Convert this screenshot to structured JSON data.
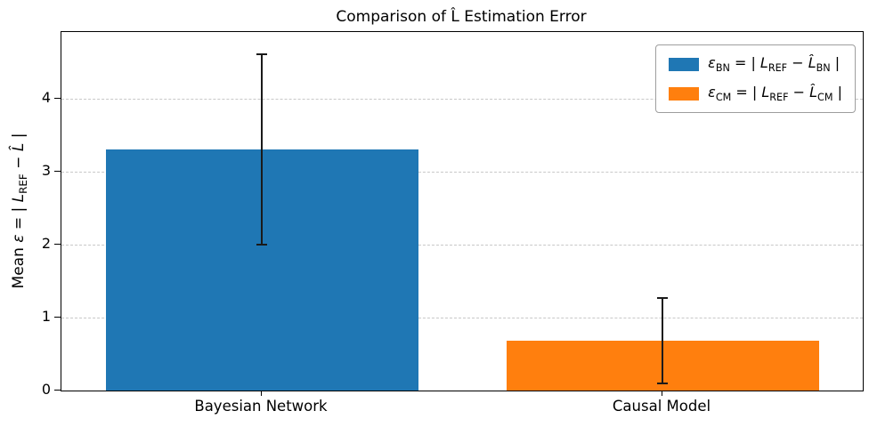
{
  "chart_data": {
    "type": "bar",
    "title": "Comparison of L̂ Estimation Error",
    "ylabel_segments": [
      {
        "t": "Mean "
      },
      {
        "t": "ε",
        "i": true
      },
      {
        "t": " = | "
      },
      {
        "t": "L",
        "i": true
      },
      {
        "t": "REF",
        "sub": true
      },
      {
        "t": " − "
      },
      {
        "t": "L̂",
        "i": true
      },
      {
        "t": " |"
      }
    ],
    "categories": [
      "Bayesian Network",
      "Causal Model"
    ],
    "yticks": [
      0,
      1,
      2,
      3,
      4
    ],
    "ylim": [
      0,
      4.91
    ],
    "grid": {
      "axis": "y",
      "style": "dashed",
      "color": "#c8c8c8"
    },
    "legend_position": "upper right",
    "bars": [
      {
        "category": "Bayesian Network",
        "value": 3.3,
        "error_minus": 1.3,
        "error_plus": 1.3,
        "color": "#1f77b4",
        "legend_segments": [
          {
            "t": "ε",
            "i": true
          },
          {
            "t": "BN",
            "sub": true
          },
          {
            "t": " = | "
          },
          {
            "t": "L",
            "i": true
          },
          {
            "t": "REF",
            "sub": true
          },
          {
            "t": " − "
          },
          {
            "t": "L̂",
            "i": true
          },
          {
            "t": "BN",
            "sub": true
          },
          {
            "t": " |"
          }
        ]
      },
      {
        "category": "Causal Model",
        "value": 0.68,
        "error_minus": 0.58,
        "error_plus": 0.59,
        "color": "#ff7f0e",
        "legend_segments": [
          {
            "t": "ε",
            "i": true
          },
          {
            "t": "CM",
            "sub": true
          },
          {
            "t": " = | "
          },
          {
            "t": "L",
            "i": true
          },
          {
            "t": "REF",
            "sub": true
          },
          {
            "t": " − "
          },
          {
            "t": "L̂",
            "i": true
          },
          {
            "t": "CM",
            "sub": true
          },
          {
            "t": " |"
          }
        ]
      }
    ]
  }
}
